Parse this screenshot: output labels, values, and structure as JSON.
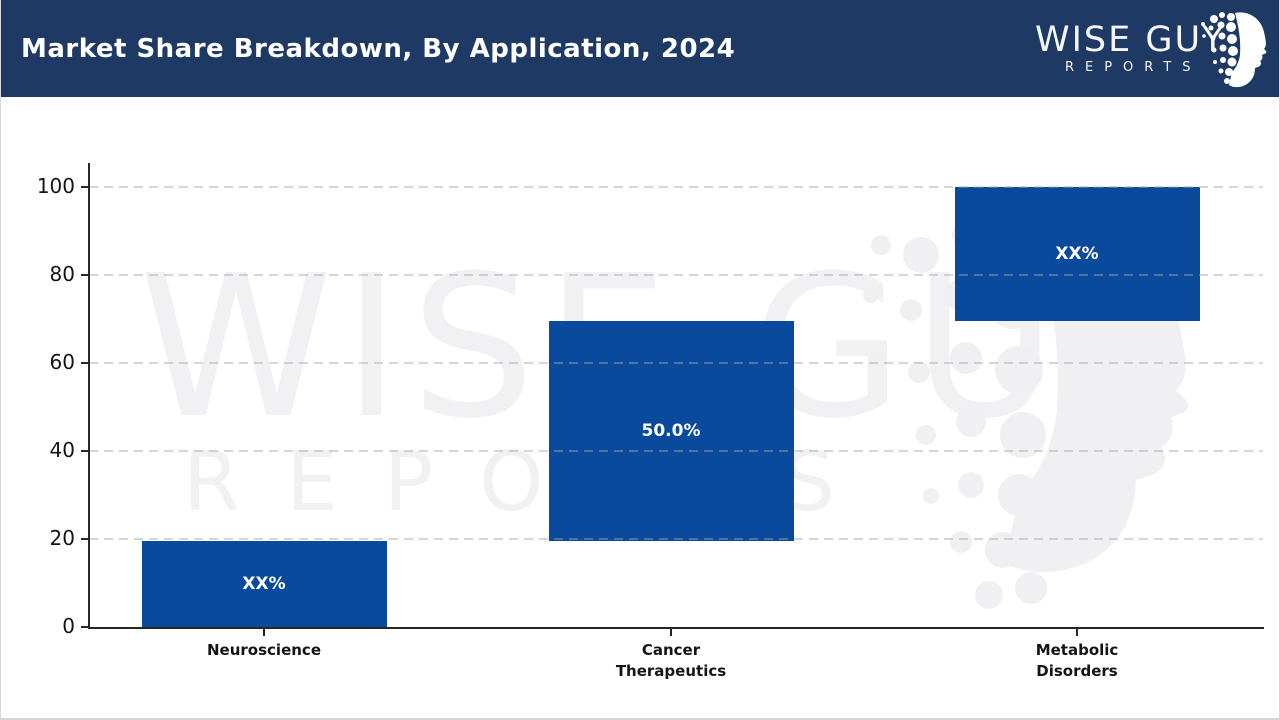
{
  "header": {
    "title": "Market Share Breakdown, By Application, 2024",
    "background_color": "#1e3a64"
  },
  "logo": {
    "brand_top": "WISE GUY",
    "brand_bottom": "REPORTS",
    "face_icon": "dotted-face-profile"
  },
  "watermark": {
    "line1": "WISE GUY",
    "line2": "REPORTS"
  },
  "chart_data": {
    "type": "bar",
    "subtype": "floating-segment-waterfall",
    "title": "Market Share Breakdown, By Application, 2024",
    "categories": [
      "Neuroscience",
      "Cancer Therapeutics",
      "Metabolic Disorders"
    ],
    "segments": [
      {
        "category_lines": [
          "Neuroscience"
        ],
        "start": 0,
        "end": 19.5,
        "value_label": "XX%"
      },
      {
        "category_lines": [
          "Cancer",
          "Therapeutics"
        ],
        "start": 19.5,
        "end": 69.5,
        "value_label": "50.0%"
      },
      {
        "category_lines": [
          "Metabolic",
          "Disorders"
        ],
        "start": 69.5,
        "end": 100,
        "value_label": "XX%"
      }
    ],
    "xlabel": "",
    "ylabel": "",
    "ylim": [
      0,
      100
    ],
    "yticks": [
      0,
      20,
      40,
      60,
      80,
      100
    ],
    "grid": "horizontal-dashed",
    "legend": "none",
    "bar_color": "#0a4a9c",
    "axis_color": "#262626",
    "gridline_color": "#dcdcdc"
  }
}
